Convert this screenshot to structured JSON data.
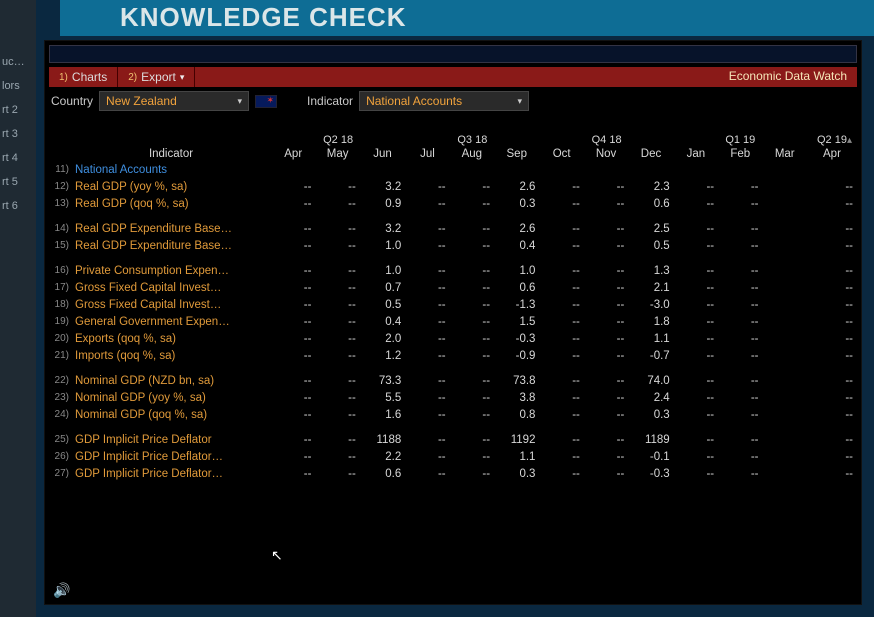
{
  "banner": {
    "title": "KNOWLEDGE CHECK"
  },
  "sidebar_items": [
    "uc…",
    "lors",
    "rt 2",
    "rt 3",
    "rt 4",
    "rt 5",
    "rt 6"
  ],
  "tabs": {
    "charts": {
      "idx": "1)",
      "label": "Charts"
    },
    "export": {
      "idx": "2)",
      "label": "Export"
    }
  },
  "edw_label": "Economic Data Watch",
  "filters": {
    "country_label": "Country",
    "country_value": "New Zealand",
    "indicator_label": "Indicator",
    "indicator_value": "National Accounts"
  },
  "header": {
    "indicator_col": "Indicator",
    "quarters": [
      "Q2 18",
      "Q3 18",
      "Q4 18",
      "Q1 19",
      "Q2 19"
    ],
    "months": [
      "Apr",
      "May",
      "Jun",
      "Jul",
      "Aug",
      "Sep",
      "Oct",
      "Nov",
      "Dec",
      "Jan",
      "Feb",
      "Mar",
      "Apr"
    ]
  },
  "rows": [
    {
      "n": "11)",
      "label": "National Accounts",
      "section": true,
      "vals": [
        "",
        "",
        "",
        "",
        "",
        "",
        "",
        "",
        "",
        "",
        "",
        "",
        ""
      ]
    },
    {
      "n": "12)",
      "label": "Real GDP (yoy %, sa)",
      "vals": [
        "--",
        "--",
        "3.2",
        "--",
        "--",
        "2.6",
        "--",
        "--",
        "2.3",
        "--",
        "--",
        "",
        "--"
      ]
    },
    {
      "n": "13)",
      "label": "Real GDP (qoq %, sa)",
      "vals": [
        "--",
        "--",
        "0.9",
        "--",
        "--",
        "0.3",
        "--",
        "--",
        "0.6",
        "--",
        "--",
        "",
        "--"
      ]
    },
    {
      "spacer": true
    },
    {
      "n": "14)",
      "label": "Real GDP Expenditure Base…",
      "vals": [
        "--",
        "--",
        "3.2",
        "--",
        "--",
        "2.6",
        "--",
        "--",
        "2.5",
        "--",
        "--",
        "",
        "--"
      ]
    },
    {
      "n": "15)",
      "label": "Real GDP Expenditure Base…",
      "vals": [
        "--",
        "--",
        "1.0",
        "--",
        "--",
        "0.4",
        "--",
        "--",
        "0.5",
        "--",
        "--",
        "",
        "--"
      ]
    },
    {
      "spacer": true
    },
    {
      "n": "16)",
      "label": "Private Consumption Expen…",
      "vals": [
        "--",
        "--",
        "1.0",
        "--",
        "--",
        "1.0",
        "--",
        "--",
        "1.3",
        "--",
        "--",
        "",
        "--"
      ]
    },
    {
      "n": "17)",
      "label": "Gross Fixed Capital Invest…",
      "vals": [
        "--",
        "--",
        "0.7",
        "--",
        "--",
        "0.6",
        "--",
        "--",
        "2.1",
        "--",
        "--",
        "",
        "--"
      ]
    },
    {
      "n": "18)",
      "label": "Gross Fixed Capital Invest…",
      "vals": [
        "--",
        "--",
        "0.5",
        "--",
        "--",
        "-1.3",
        "--",
        "--",
        "-3.0",
        "--",
        "--",
        "",
        "--"
      ]
    },
    {
      "n": "19)",
      "label": "General Government Expen…",
      "vals": [
        "--",
        "--",
        "0.4",
        "--",
        "--",
        "1.5",
        "--",
        "--",
        "1.8",
        "--",
        "--",
        "",
        "--"
      ]
    },
    {
      "n": "20)",
      "label": "Exports (qoq %, sa)",
      "vals": [
        "--",
        "--",
        "2.0",
        "--",
        "--",
        "-0.3",
        "--",
        "--",
        "1.1",
        "--",
        "--",
        "",
        "--"
      ]
    },
    {
      "n": "21)",
      "label": "Imports (qoq %, sa)",
      "vals": [
        "--",
        "--",
        "1.2",
        "--",
        "--",
        "-0.9",
        "--",
        "--",
        "-0.7",
        "--",
        "--",
        "",
        "--"
      ]
    },
    {
      "spacer": true
    },
    {
      "n": "22)",
      "label": "Nominal GDP (NZD bn, sa)",
      "vals": [
        "--",
        "--",
        "73.3",
        "--",
        "--",
        "73.8",
        "--",
        "--",
        "74.0",
        "--",
        "--",
        "",
        "--"
      ]
    },
    {
      "n": "23)",
      "label": "Nominal GDP (yoy %, sa)",
      "vals": [
        "--",
        "--",
        "5.5",
        "--",
        "--",
        "3.8",
        "--",
        "--",
        "2.4",
        "--",
        "--",
        "",
        "--"
      ]
    },
    {
      "n": "24)",
      "label": "Nominal GDP (qoq %, sa)",
      "vals": [
        "--",
        "--",
        "1.6",
        "--",
        "--",
        "0.8",
        "--",
        "--",
        "0.3",
        "--",
        "--",
        "",
        "--"
      ]
    },
    {
      "spacer": true
    },
    {
      "n": "25)",
      "label": "GDP Implicit Price Deflator",
      "vals": [
        "--",
        "--",
        "1188",
        "--",
        "--",
        "1192",
        "--",
        "--",
        "1189",
        "--",
        "--",
        "",
        "--"
      ]
    },
    {
      "n": "26)",
      "label": "GDP Implicit Price Deflator…",
      "vals": [
        "--",
        "--",
        "2.2",
        "--",
        "--",
        "1.1",
        "--",
        "--",
        "-0.1",
        "--",
        "--",
        "",
        "--"
      ]
    },
    {
      "n": "27)",
      "label": "GDP Implicit Price Deflator…",
      "vals": [
        "--",
        "--",
        "0.6",
        "--",
        "--",
        "0.3",
        "--",
        "--",
        "-0.3",
        "--",
        "--",
        "",
        "--"
      ]
    }
  ],
  "colors": {
    "banner_bg": "#0e6d95",
    "banner_text": "#dbe6e8",
    "terminal_bg": "#000000",
    "tab_bg": "#8a1a18",
    "label_orange": "#e09a3a",
    "section_blue": "#3f8fe0",
    "value_text": "#d8d8d8",
    "dropdown_text": "#f2a33c"
  }
}
